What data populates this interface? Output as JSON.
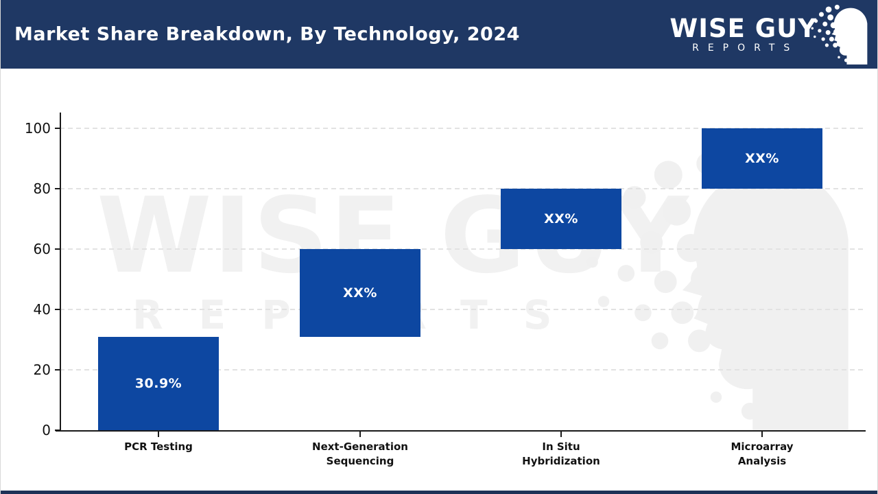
{
  "header": {
    "title": "Market Share Breakdown, By Technology, 2024"
  },
  "logo": {
    "main": "WISE GUY",
    "sub": "REPORTS"
  },
  "watermark": {
    "line1": "WISE GUY",
    "line2": "REPORTS"
  },
  "colors": {
    "header_bg": "#1f3864",
    "footer_bg": "#1d3156",
    "bar": "#0d47a1",
    "axis": "#1a1a1a",
    "grid": "#e2e2e2",
    "watermark": "#f1f1f1",
    "bar_label": "#ffffff"
  },
  "chart_data": {
    "type": "bar",
    "subtype": "waterfall",
    "title": "Market Share Breakdown, By Technology, 2024",
    "xlabel": "",
    "ylabel": "",
    "ylim": [
      0,
      100
    ],
    "yticks": [
      0,
      20,
      40,
      60,
      80,
      100
    ],
    "grid": "horizontal-dashed",
    "legend": "none",
    "bar_color": "#0d47a1",
    "categories": [
      "PCR Testing",
      "Next-Generation Sequencing",
      "In Situ Hybridization",
      "Microarray Analysis"
    ],
    "segments": [
      {
        "category_lines": [
          "PCR Testing"
        ],
        "start": 0,
        "end": 30.9,
        "value": 30.9,
        "display_label": "30.9%"
      },
      {
        "category_lines": [
          "Next-Generation",
          "Sequencing"
        ],
        "start": 30.9,
        "end": 60.0,
        "value": 29.1,
        "display_label": "XX%"
      },
      {
        "category_lines": [
          "In Situ",
          "Hybridization"
        ],
        "start": 60.0,
        "end": 80.0,
        "value": 20.0,
        "display_label": "XX%"
      },
      {
        "category_lines": [
          "Microarray",
          "Analysis"
        ],
        "start": 80.0,
        "end": 100.0,
        "value": 20.0,
        "display_label": "XX%"
      }
    ]
  }
}
